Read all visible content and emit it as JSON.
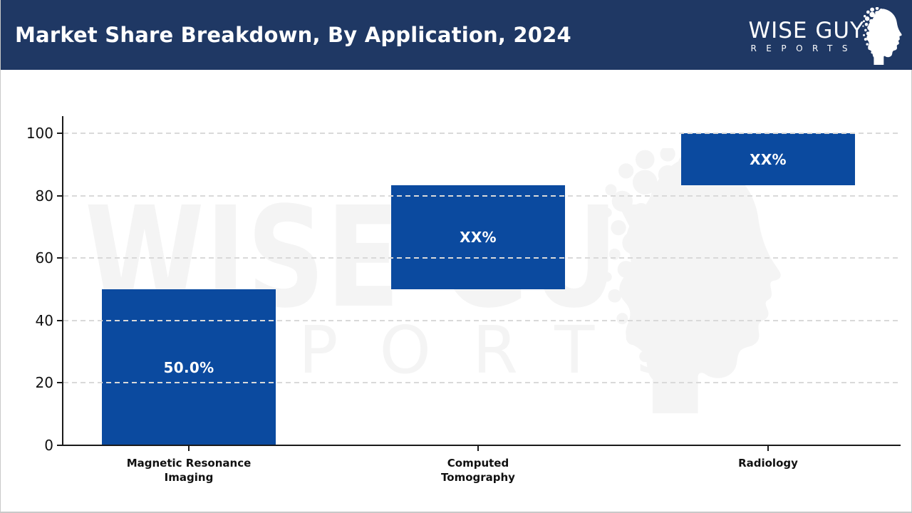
{
  "header": {
    "title": "Market Share Breakdown, By Application, 2024",
    "logo": {
      "line1": "WISE GUY",
      "line2": "REPORTS"
    }
  },
  "watermark": {
    "line1": "WISE GUY",
    "line2": "REPORTS"
  },
  "chart_data": {
    "type": "bar",
    "subtype": "waterfall",
    "title": "Market Share Breakdown, By Application, 2024",
    "categories": [
      {
        "label": "Magnetic Resonance Imaging",
        "lines": [
          "Magnetic Resonance",
          "Imaging"
        ]
      },
      {
        "label": "Computed Tomography",
        "lines": [
          "Computed",
          "Tomography"
        ]
      },
      {
        "label": "Radiology",
        "lines": [
          "Radiology"
        ]
      }
    ],
    "segments": [
      {
        "category": "Magnetic Resonance Imaging",
        "start": 0,
        "end": 50.0,
        "value": 50.0,
        "value_label": "50.0%"
      },
      {
        "category": "Computed Tomography",
        "start": 50.0,
        "end": 83.3,
        "value": 33.3,
        "value_label": "XX%"
      },
      {
        "category": "Radiology",
        "start": 83.3,
        "end": 100.0,
        "value": 16.7,
        "value_label": "XX%"
      }
    ],
    "ylim": [
      0,
      100
    ],
    "yticks": [
      0,
      20,
      40,
      60,
      80,
      100
    ],
    "grid": {
      "horizontal": true,
      "style": "dashed",
      "color": "#d9d9d9"
    },
    "legend": "none",
    "bar_color": "#0b4a9f",
    "bar_label_color": "#ffffff",
    "axis_color": "#1a1a1a"
  },
  "colors": {
    "header_bg": "#1f3864",
    "page_bg": "#ffffff",
    "watermark": "#f4f4f4",
    "border": "#c9c9c9"
  }
}
